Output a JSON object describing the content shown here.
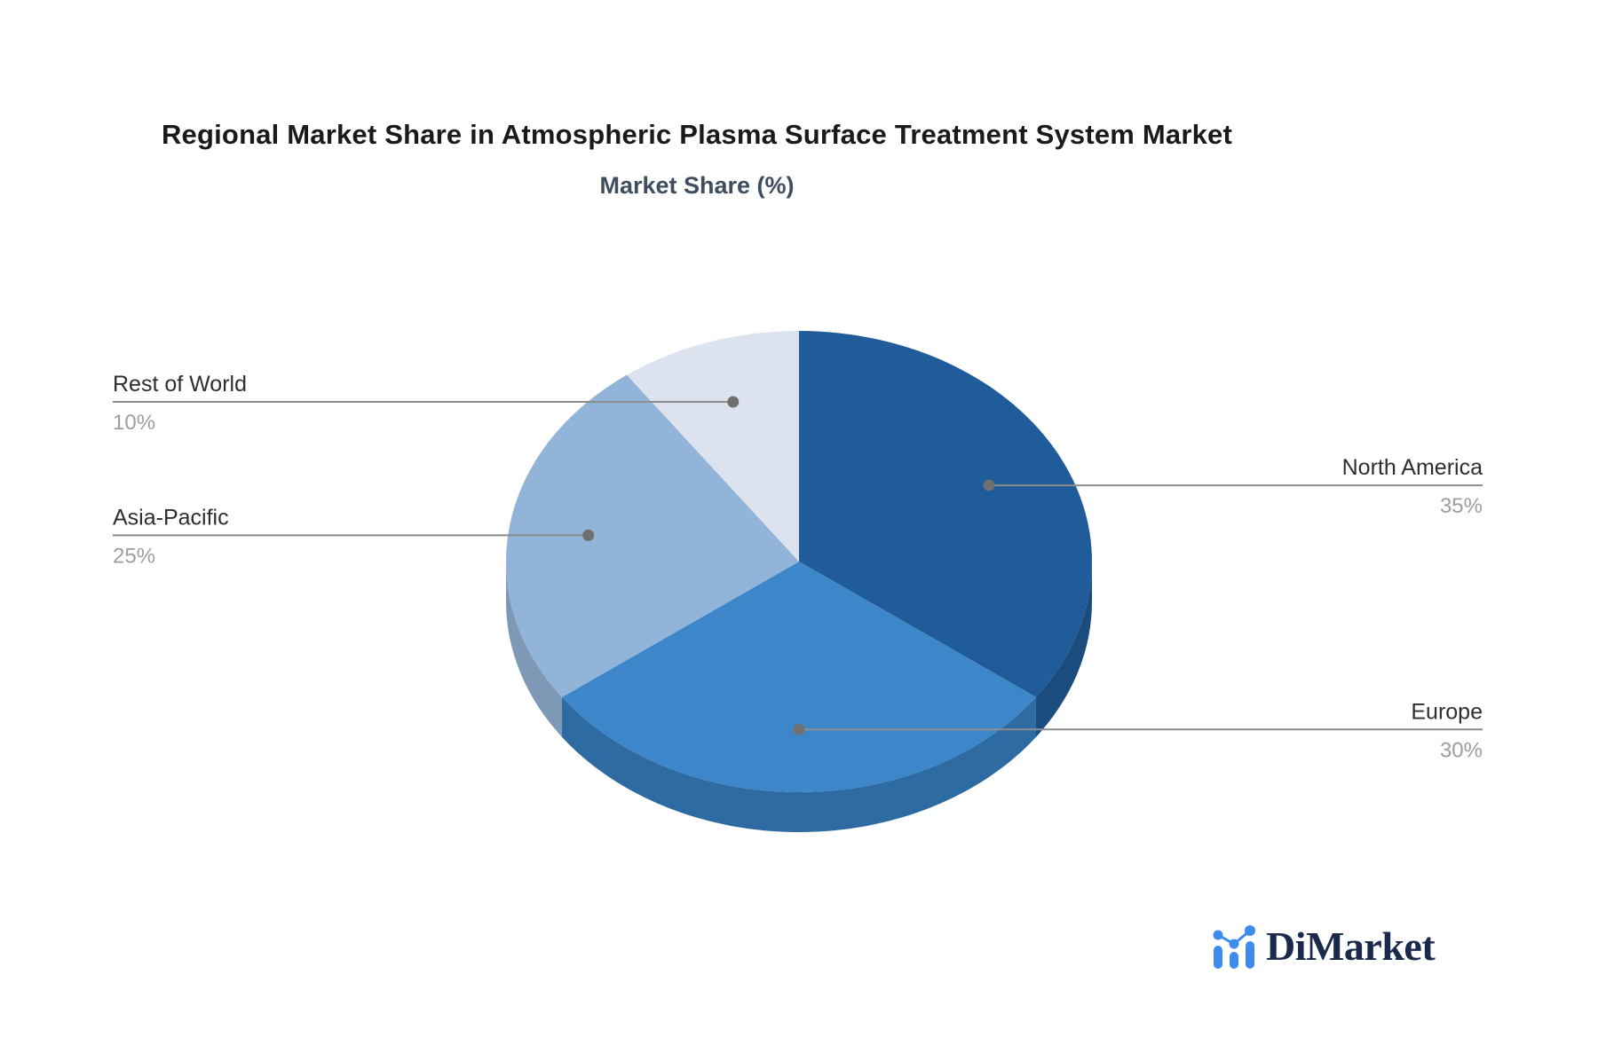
{
  "header": {
    "title": "Regional Market Share in Atmospheric Plasma Surface Treatment System Market",
    "subtitle": "Market Share (%)"
  },
  "chart_data": {
    "type": "pie",
    "effect": "3d",
    "start_angle_deg": 0,
    "clockwise": true,
    "unit": "%",
    "title": "Regional Market Share in Atmospheric Plasma Surface Treatment System Market",
    "subtitle": "Market Share (%)",
    "slices": [
      {
        "label": "North America",
        "value": 35,
        "display": "35%",
        "color": "#1F5C99",
        "side_color": "#1A4C7E",
        "label_side": "right"
      },
      {
        "label": "Europe",
        "value": 30,
        "display": "30%",
        "color": "#3C86C9",
        "side_color": "#2F6BA3",
        "label_side": "right"
      },
      {
        "label": "Asia-Pacific",
        "value": 25,
        "display": "25%",
        "color": "#92B4D9",
        "side_color": "#7E99B6",
        "label_side": "left"
      },
      {
        "label": "Rest of World",
        "value": 10,
        "display": "10%",
        "color": "#DDE3EE",
        "side_color": "#C2CBD9",
        "label_side": "left"
      }
    ],
    "legend_position": "none",
    "leader_line_color": "#8C8C8C",
    "leader_dot_color": "#707070",
    "label_color": "#2e2e2e",
    "value_color": "#9e9e9e"
  },
  "footer": {
    "logo_text": "DiMarket",
    "logo_icon": "bar-chart-trend-icon",
    "logo_text_color": "#1b2a4a",
    "logo_accent_color": "#3E8BF0"
  }
}
